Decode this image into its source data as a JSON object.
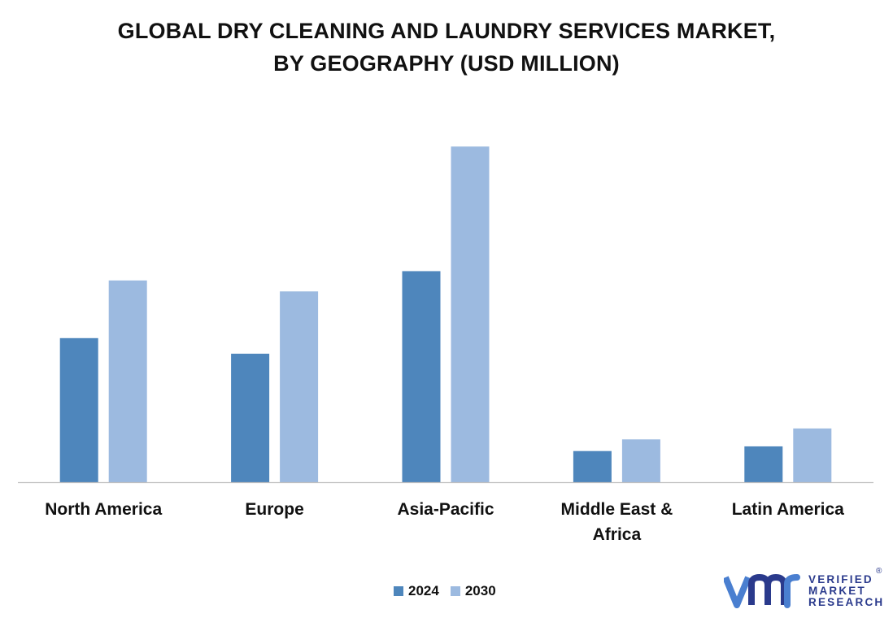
{
  "title_lines": [
    "GLOBAL DRY CLEANING AND LAUNDRY SERVICES MARKET,",
    "BY GEOGRAPHY (USD MILLION)"
  ],
  "chart_data": {
    "type": "bar",
    "title": "GLOBAL DRY CLEANING AND LAUNDRY SERVICES MARKET, BY GEOGRAPHY (USD MILLION)",
    "categories": [
      "North America",
      "Europe",
      "Asia-Pacific",
      "Middle East & Africa",
      "Latin America"
    ],
    "series": [
      {
        "name": "2024",
        "color": "#4e86bc",
        "values": [
          185,
          165,
          271,
          40,
          46
        ]
      },
      {
        "name": "2030",
        "color": "#9cbae0",
        "values": [
          259,
          245,
          431,
          55,
          69
        ]
      }
    ],
    "xlabel": "",
    "ylabel": "",
    "ylim": [
      0,
      450
    ],
    "grid": false,
    "legend_position": "bottom-center"
  },
  "logo": {
    "lines": [
      "VERIFIED",
      "MARKET",
      "RESEARCH"
    ],
    "registered": "®",
    "color": "#2a3a8c",
    "accent": "#4a7fd0",
    "icon": "vmr-logo-icon"
  }
}
